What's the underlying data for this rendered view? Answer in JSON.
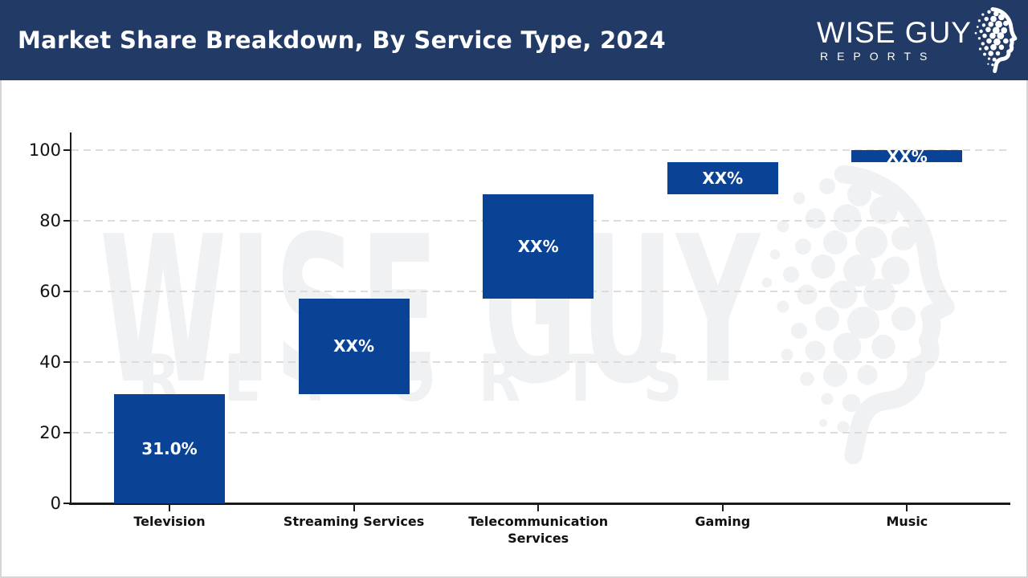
{
  "header": {
    "title": "Market Share Breakdown, By Service Type, 2024",
    "logo": {
      "line1": "WISE GUY",
      "line2": "REPORTS"
    }
  },
  "watermark": {
    "line1": "WISE GUY",
    "line2": "REPORTS"
  },
  "colors": {
    "header_bg": "#213a66",
    "bar": "#0a4396",
    "bar_label": "#ffffff",
    "grid": "#dcdcdc",
    "axis": "#1a1a1a",
    "watermark": "#f0f1f3"
  },
  "chart_data": {
    "type": "bar",
    "subtype": "waterfall",
    "title": "Market Share Breakdown, By Service Type, 2024",
    "categories": [
      "Television",
      "Streaming Services",
      "Telecommunication Services",
      "Gaming",
      "Music"
    ],
    "segments": [
      {
        "category_index": 0,
        "start": 0,
        "end": 31,
        "label": "31.0%"
      },
      {
        "category_index": 1,
        "start": 31,
        "end": 58,
        "label": "XX%"
      },
      {
        "category_index": 2,
        "start": 58,
        "end": 87.5,
        "label": "XX%"
      },
      {
        "category_index": 3,
        "start": 87.5,
        "end": 96.5,
        "label": "XX%"
      },
      {
        "category_index": 4,
        "start": 96.5,
        "end": 100,
        "label": "XX%"
      }
    ],
    "ylim": [
      0,
      105
    ],
    "yticks": [
      0,
      20,
      40,
      60,
      80,
      100
    ],
    "xlabel": "",
    "ylabel": "",
    "grid": "horizontal-dashed",
    "legend": "none"
  }
}
